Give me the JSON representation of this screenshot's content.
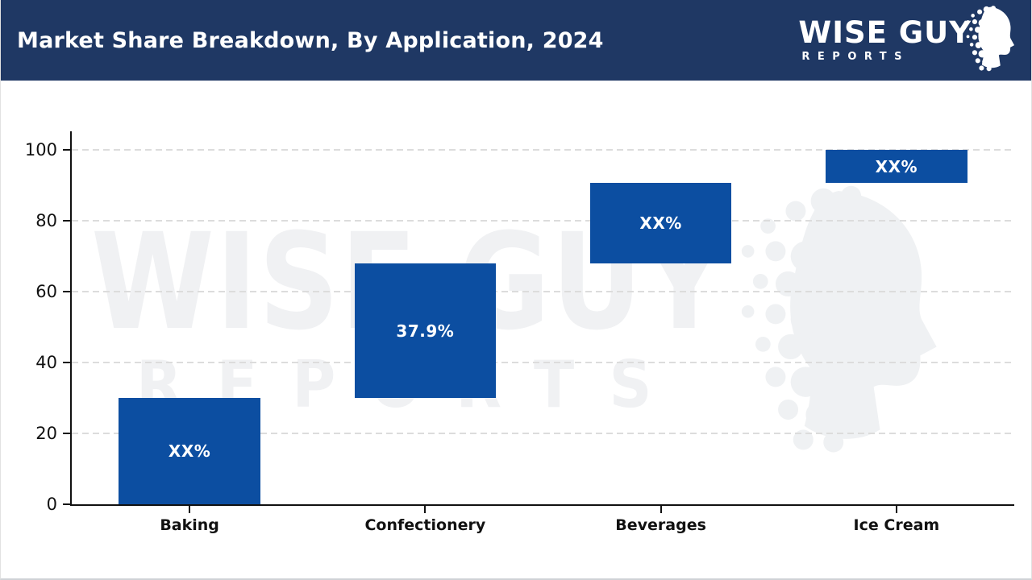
{
  "header": {
    "title": "Market Share Breakdown, By Application, 2024",
    "bg_color": "#1f3864",
    "logo": {
      "line1": "WISE GUY",
      "line2": "REPORTS"
    }
  },
  "watermark": {
    "line1": "WISE GUY",
    "line2": "REPORTS"
  },
  "chart_data": {
    "type": "bar",
    "subtype": "floating-waterfall",
    "title": "Market Share Breakdown, By Application, 2024",
    "categories": [
      "Baking",
      "Confectionery",
      "Beverages",
      "Ice Cream"
    ],
    "segments": [
      [
        0,
        30
      ],
      [
        30,
        67.9
      ],
      [
        67.9,
        90.6
      ],
      [
        90.6,
        100
      ]
    ],
    "values_pct": [
      30,
      37.9,
      22.7,
      9.4
    ],
    "bar_labels": [
      "XX%",
      "37.9%",
      "XX%",
      "XX%"
    ],
    "xlabel": "",
    "ylabel": "",
    "ylim": [
      0,
      100
    ],
    "yticks": [
      0,
      20,
      40,
      60,
      80,
      100
    ],
    "grid": "horizontal-dashed",
    "legend": "none",
    "bar_color": "#0c4ea1",
    "bar_label_color": "#ffffff",
    "axis_color": "#111111",
    "gridline_color": "#dcdcdc"
  }
}
